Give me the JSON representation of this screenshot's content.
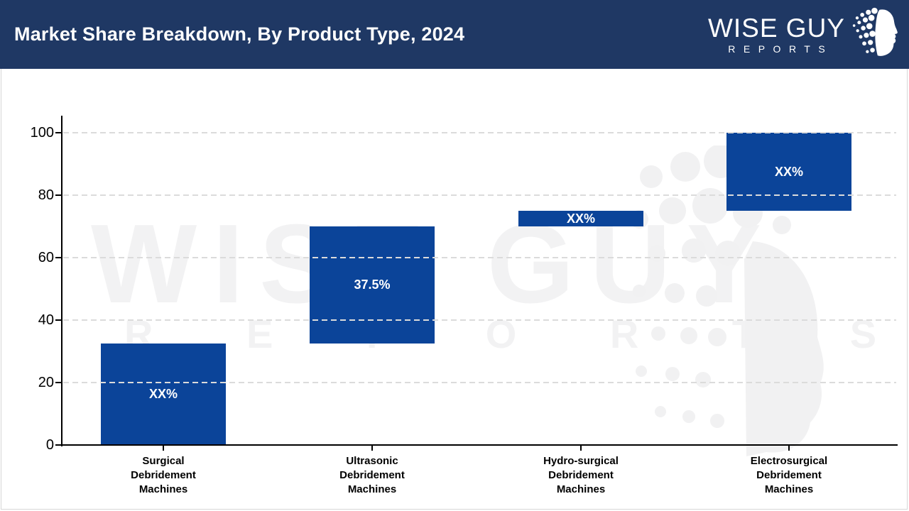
{
  "header": {
    "title": "Market Share Breakdown, By Product Type, 2024",
    "bg_color": "#1f3864",
    "logo": {
      "primary": "WISE GUY",
      "secondary": "REPORTS"
    }
  },
  "watermark": {
    "primary": "WISE GUY",
    "secondary": "R E P O R T S"
  },
  "chart_data": {
    "type": "bar",
    "subtype": "floating-segment",
    "title": "Market Share Breakdown, By Product Type, 2024",
    "categories": [
      "Surgical Debridement Machines",
      "Ultrasonic Debridement Machines",
      "Hydro-surgical Debridement Machines",
      "Electrosurgical Debridement Machines"
    ],
    "bars": [
      {
        "category": "Surgical Debridement Machines",
        "start": 0,
        "end": 32.5,
        "label": "XX%"
      },
      {
        "category": "Ultrasonic Debridement Machines",
        "start": 32.5,
        "end": 70,
        "label": "37.5%"
      },
      {
        "category": "Hydro-surgical Debridement Machines",
        "start": 70,
        "end": 75,
        "label": "XX%"
      },
      {
        "category": "Electrosurgical Debridement Machines",
        "start": 75,
        "end": 100,
        "label": "XX%"
      }
    ],
    "ylim": [
      0,
      100
    ],
    "yticks": [
      0,
      20,
      40,
      60,
      80,
      100
    ],
    "xlabel": "",
    "ylabel": "",
    "grid": true,
    "grid_style": "dashed",
    "legend": "none",
    "bar_color": "#0b4499",
    "bar_label_color": "#ffffff",
    "axis_color": "#000000"
  }
}
